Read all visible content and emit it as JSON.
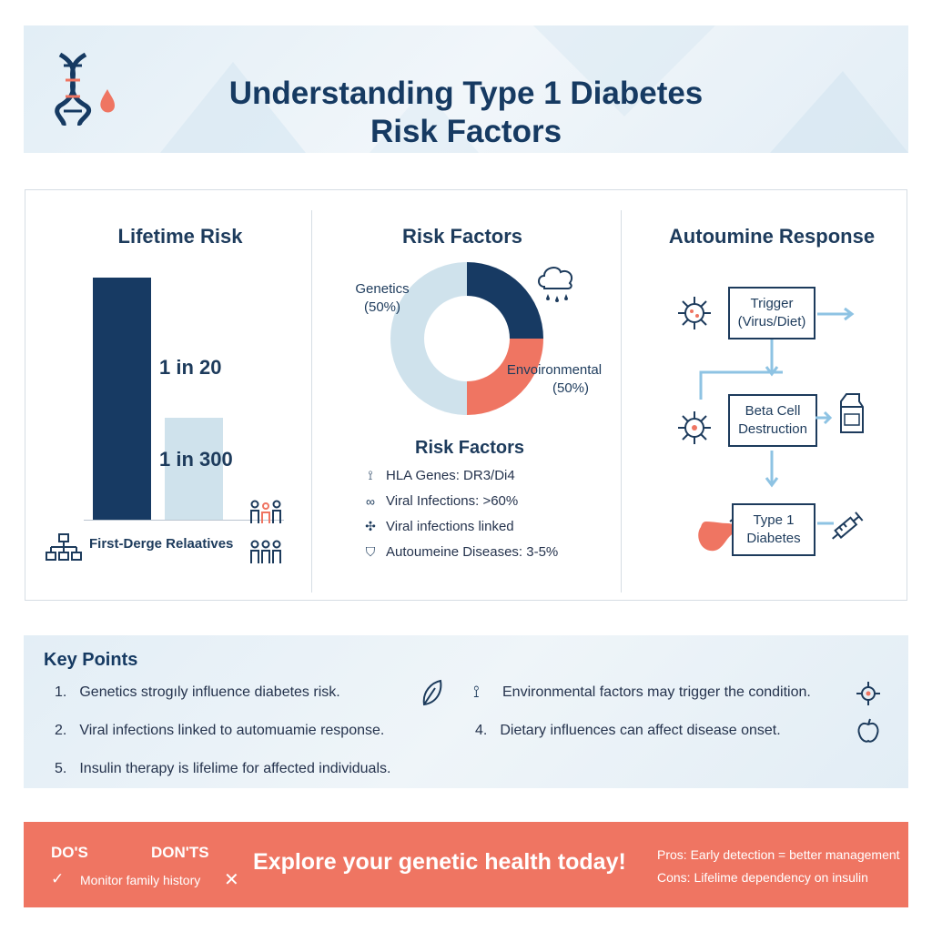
{
  "header": {
    "title_line1": "Understanding Type 1 Diabetes",
    "title_line2": "Risk Factors"
  },
  "lifetime_risk": {
    "title": "Lifetime Risk",
    "bar_labels": [
      "1 in 20",
      "1 in 300"
    ],
    "axis_label": "First-Derge Relaatives",
    "colors": {
      "first": "#173a63",
      "second": "#cfe2ec"
    }
  },
  "risk_factors": {
    "title": "Risk Factors",
    "chart_data": {
      "type": "pie",
      "slices": [
        {
          "label": "Genetics",
          "value": 50
        },
        {
          "label": "Envoironmental",
          "value": 50
        }
      ],
      "colors": [
        "#cfe2ec",
        "#173a63",
        "#ef7562"
      ]
    },
    "genetics_label": "Genetics",
    "genetics_pct": "(50%)",
    "env_label": "Envoironmental",
    "env_pct": "(50%)",
    "subtitle": "Risk Factors",
    "items": [
      {
        "icon": "dna-icon",
        "text": "HLA Genes: DR3/Di4"
      },
      {
        "icon": "virus-icon",
        "text": "Viral Infections: >60%"
      },
      {
        "icon": "germ-icon",
        "text": "Viral infections linked"
      },
      {
        "icon": "shield-icon",
        "text": "Autoumeine Diseases: 3-5%"
      }
    ]
  },
  "autoimmune": {
    "title": "Autoumine Response",
    "steps": [
      {
        "line1": "Trigger",
        "line2": "(Virus/Diet)"
      },
      {
        "line1": "Beta Cell",
        "line2": "Destruction"
      },
      {
        "line1": "Type 1",
        "line2": "Diabetes"
      }
    ]
  },
  "key_points": {
    "title": "Key Points",
    "items": [
      {
        "num": "1.",
        "text": "Genetics strogıly influence diabetes risk."
      },
      {
        "num": "",
        "text": "Environmental factors may trigger the condition."
      },
      {
        "num": "2.",
        "text": "Viral infections linked to automuamie response."
      },
      {
        "num": "4.",
        "text": "Dietary influences can affect disease onset."
      },
      {
        "num": "5.",
        "text": "Insulin therapy is lifelime for affected individuals."
      }
    ]
  },
  "cta": {
    "dos": "DO'S",
    "donts": "DON'TS",
    "dos_item": "Monitor family history",
    "main": "Explore your genetic health today!",
    "pros": "Pros: Early detection = better management",
    "cons": "Cons: Lifelime dependency on insulin",
    "color": "#ef7562"
  }
}
